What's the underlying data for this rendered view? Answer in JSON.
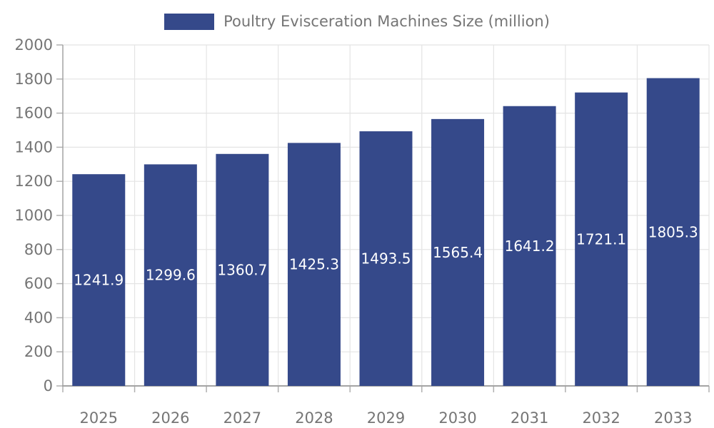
{
  "chart_data": {
    "type": "bar",
    "title": "Poultry Evisceration Machines Size (million)",
    "categories": [
      "2025",
      "2026",
      "2027",
      "2028",
      "2029",
      "2030",
      "2031",
      "2032",
      "2033"
    ],
    "values": [
      1241.9,
      1299.6,
      1360.7,
      1425.3,
      1493.5,
      1565.4,
      1641.2,
      1721.1,
      1805.3
    ],
    "xlabel": "",
    "ylabel": "",
    "ylim": [
      0,
      2000
    ],
    "ytick_step": 200,
    "grid": true,
    "legend_position": "top",
    "legend_entries": [
      "Poultry Evisceration Machines Size (million)"
    ],
    "colors": {
      "bar": "#35498a",
      "grid": "#e4e4e4",
      "axis": "#a3a3a3",
      "tick": "#b0b0b0",
      "tick_text": "#757575",
      "value_label": "#ffffff",
      "background": "#ffffff"
    }
  }
}
